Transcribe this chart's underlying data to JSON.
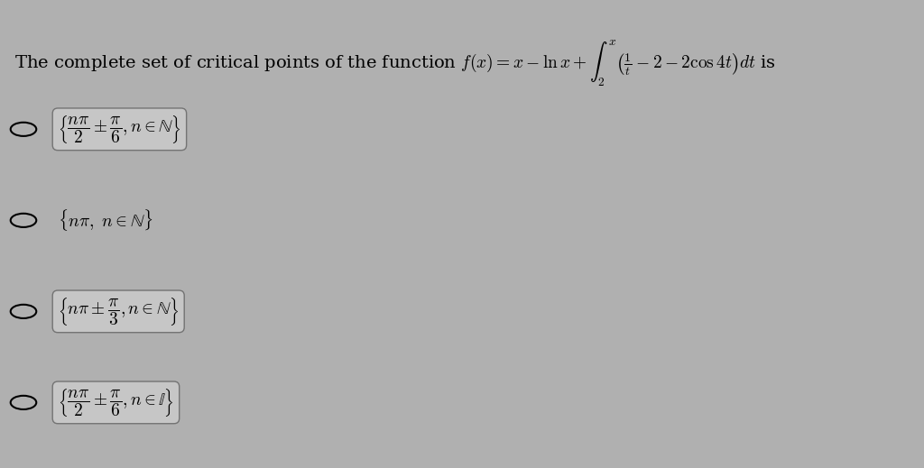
{
  "background_color": "#b0b0b0",
  "title_text": "The complete set of critical points of the function $f(x) = x - \\ln x + \\int_{2}^{x} \\left(\\frac{1}{t} - 2 - 2\\cos 4t\\right) dt$ is",
  "options": [
    "$\\left\\{\\dfrac{n\\pi}{2} \\pm \\dfrac{\\pi}{6}, n \\in \\mathbb{N}\\right\\}$",
    "$\\{n\\pi,\\ n \\in \\mathbb{N}\\}$",
    "$\\left\\{n\\pi \\pm \\dfrac{\\pi}{3}, n \\in \\mathbb{N}\\right\\}$",
    "$\\left\\{\\dfrac{n\\pi}{2} \\pm \\dfrac{\\pi}{6}, n \\in \\mathbb{I}\\right\\}$"
  ],
  "title_fontsize": 14,
  "option_fontsize": 14,
  "text_color": "#000000",
  "box_color": "#ffffff",
  "fig_width": 10.24,
  "fig_height": 5.19,
  "dpi": 100
}
